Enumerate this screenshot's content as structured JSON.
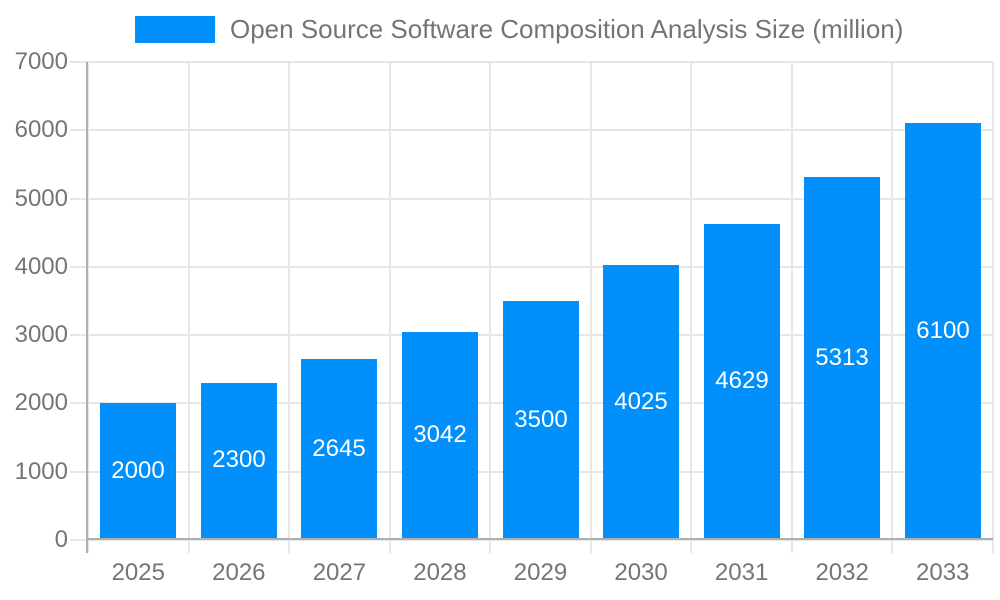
{
  "chart_data": {
    "type": "bar",
    "title": "Open Source Software Composition Analysis Size (million)",
    "legend": [
      "Open Source Software Composition Analysis Size (million)"
    ],
    "legend_position": "top",
    "categories": [
      "2025",
      "2026",
      "2027",
      "2028",
      "2029",
      "2030",
      "2031",
      "2032",
      "2033"
    ],
    "series": [
      {
        "name": "Open Source Software Composition Analysis Size (million)",
        "values": [
          2000,
          2300,
          2645,
          3042,
          3500,
          4025,
          4629,
          5313,
          6100
        ]
      }
    ],
    "data_labels": [
      2000,
      2300,
      2645,
      3042,
      3500,
      4025,
      4629,
      5313,
      6100
    ],
    "xlabel": "",
    "ylabel": "",
    "ylim": [
      0,
      7000
    ],
    "yticks": [
      0,
      1000,
      2000,
      3000,
      4000,
      5000,
      6000,
      7000
    ],
    "grid": true,
    "colors": {
      "bar": "#008FFB",
      "bar_label": "#ffffff",
      "axis_text": "#757575",
      "grid_line": "#e6e6e6",
      "axis_line": "#b0b0b0",
      "background": "#ffffff"
    }
  }
}
